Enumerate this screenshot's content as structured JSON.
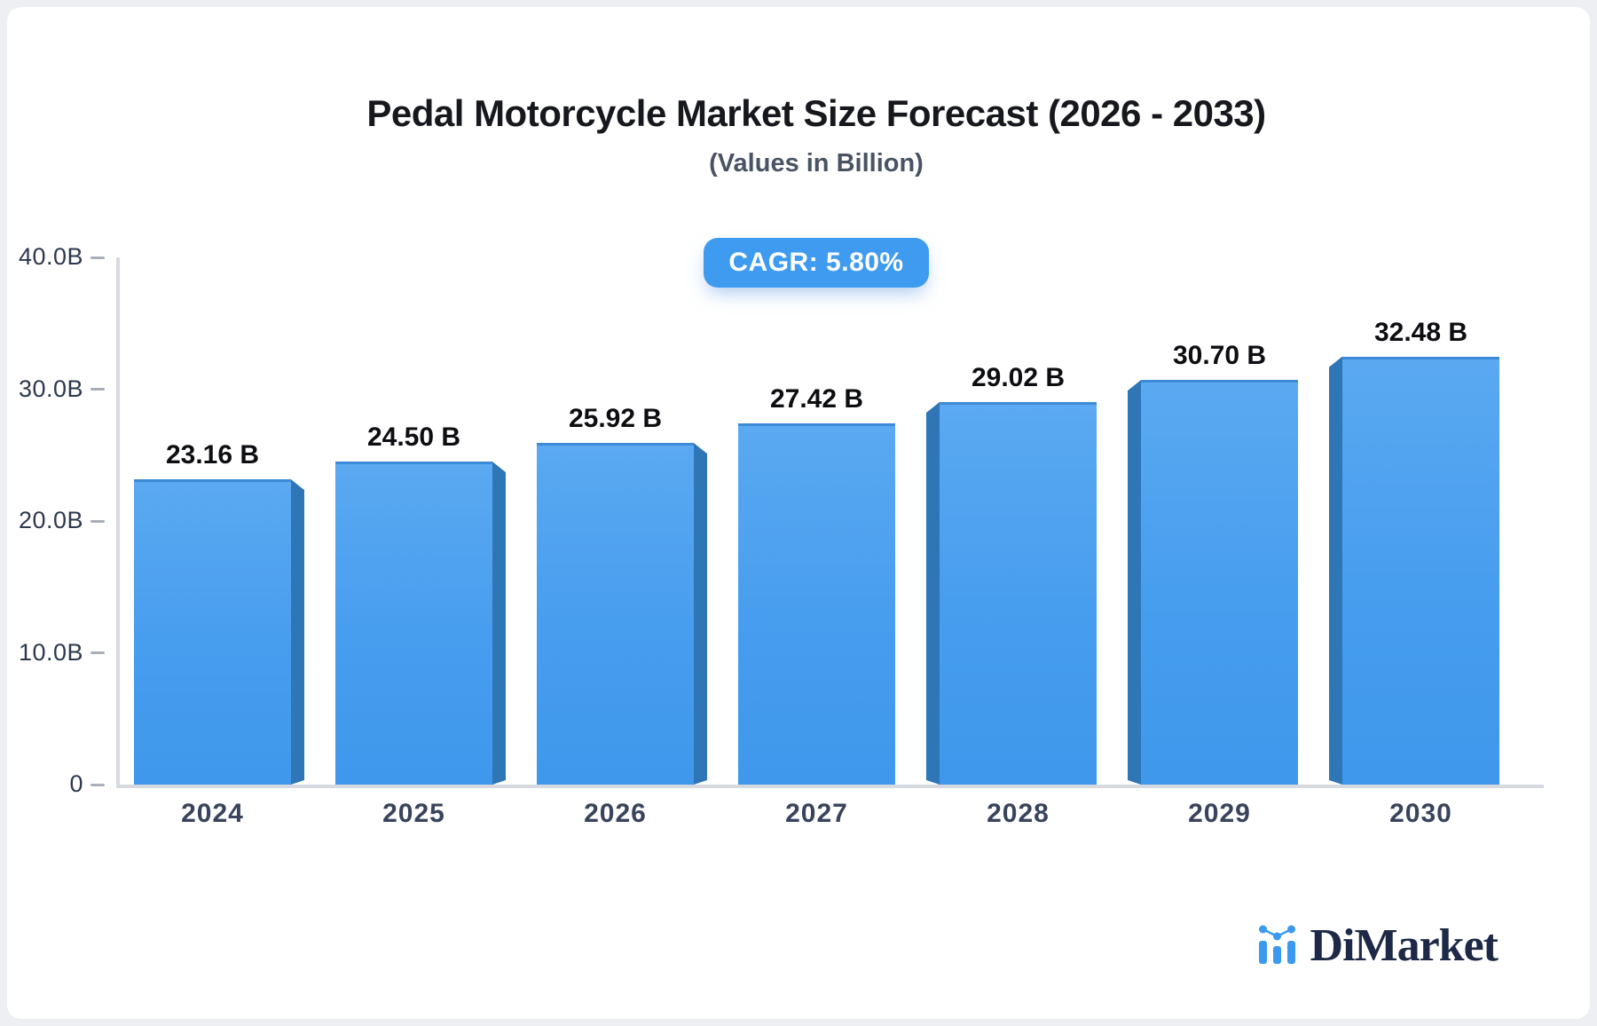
{
  "title": "Pedal Motorcycle Market Size Forecast (2026 - 2033)",
  "subtitle": "(Values in Billion)",
  "badge": {
    "label": "CAGR: 5.80%"
  },
  "chart_data": {
    "type": "bar",
    "title": "Pedal Motorcycle Market Size Forecast (2026 - 2033)",
    "subtitle": "(Values in Billion)",
    "categories": [
      "2024",
      "2025",
      "2026",
      "2027",
      "2028",
      "2029",
      "2030"
    ],
    "values": [
      23.16,
      24.5,
      25.92,
      27.42,
      29.02,
      30.7,
      32.48
    ],
    "value_labels": [
      "23.16 B",
      "24.50 B",
      "25.92 B",
      "27.42 B",
      "29.02 B",
      "30.70 B",
      "32.48 B"
    ],
    "cagr": "5.80%",
    "xlabel": "",
    "ylabel": "",
    "ylim": [
      0,
      40
    ],
    "y_ticks": [
      {
        "value": 0,
        "label": "0"
      },
      {
        "value": 10,
        "label": "10.0B"
      },
      {
        "value": 20,
        "label": "20.0B"
      },
      {
        "value": 30,
        "label": "30.0B"
      },
      {
        "value": 40,
        "label": "40.0B"
      }
    ],
    "grid": false,
    "legend": "none",
    "bar_color": "#459aec",
    "bar_side_color": "#2e76b6",
    "axis_color": "#d7d9e0"
  },
  "logo": {
    "text": "DiMarket",
    "icon": "bar-chart-sparkline-icon",
    "icon_color": "#3b9af0"
  }
}
